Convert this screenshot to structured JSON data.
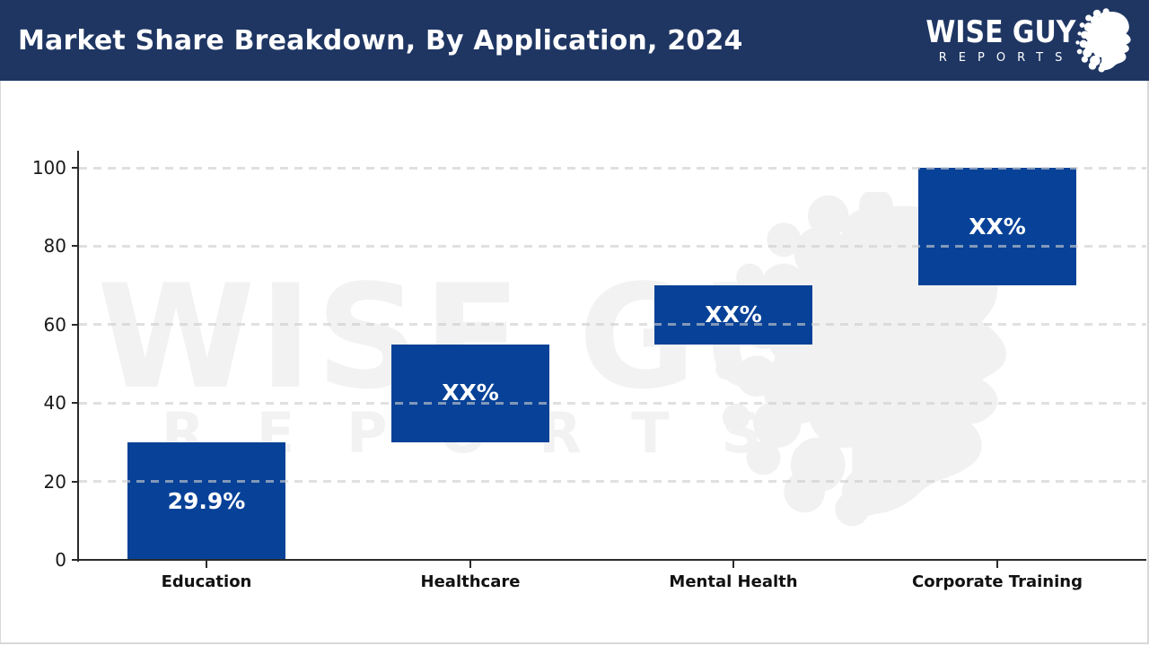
{
  "header": {
    "title": "Market Share Breakdown, By Application, 2024",
    "bg_color": "#1f3663",
    "text_color": "#ffffff",
    "logo": {
      "wordmark": "WISE GUY",
      "subtext": "REPORTS"
    }
  },
  "watermark": {
    "wordmark": "WISE GUY",
    "subtext": "REPORTS"
  },
  "chart_data": {
    "type": "bar",
    "variant": "waterfall",
    "title": "Market Share Breakdown, By Application, 2024",
    "categories": [
      "Education",
      "Healthcare",
      "Mental Health",
      "Corporate Training"
    ],
    "bars": [
      {
        "category": "Education",
        "start": 0,
        "end": 29.9,
        "label": "29.9%"
      },
      {
        "category": "Healthcare",
        "start": 30,
        "end": 55,
        "label": "XX%"
      },
      {
        "category": "Mental Health",
        "start": 55,
        "end": 70,
        "label": "XX%"
      },
      {
        "category": "Corporate Training",
        "start": 70,
        "end": 100,
        "label": "XX%"
      }
    ],
    "ylim": [
      0,
      100
    ],
    "yticks": [
      0,
      20,
      40,
      60,
      80,
      100
    ],
    "grid": true,
    "legend": false,
    "xlabel": "",
    "ylabel": "",
    "bar_color": "#084298",
    "value_label_color": "#ffffff",
    "axis_color": "#2b2b2b",
    "grid_color": "#cdcdcd",
    "tick_label_color": "#1a1a1a"
  }
}
